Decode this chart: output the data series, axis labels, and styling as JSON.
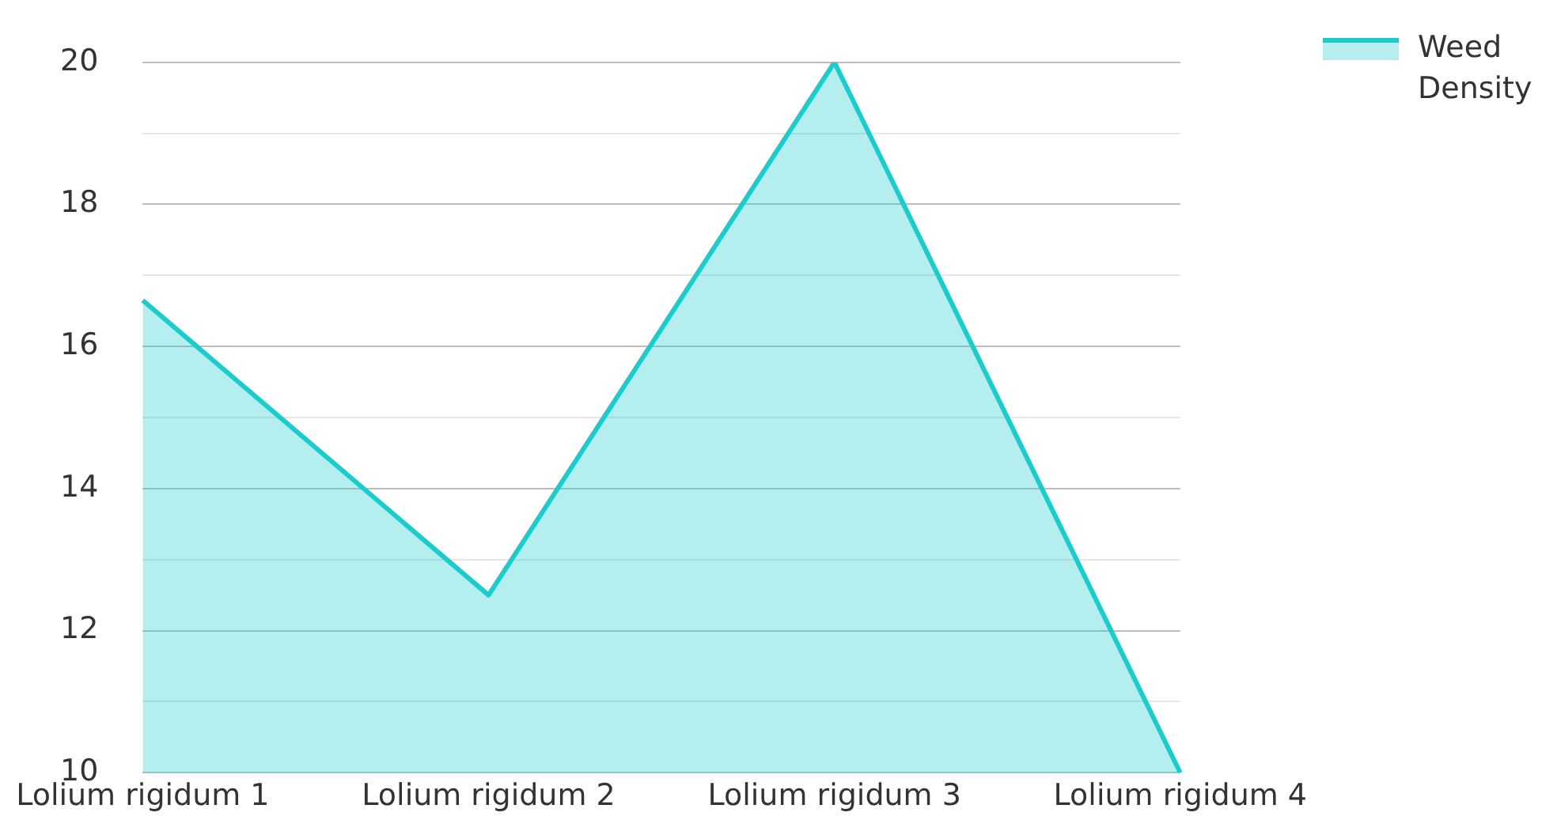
{
  "chart_data": {
    "type": "area",
    "categories": [
      "Lolium rigidum 1",
      "Lolium rigidum 2",
      "Lolium rigidum 3",
      "Lolium rigidum 4"
    ],
    "series": [
      {
        "name": "Weed Density",
        "color": "#1ccccc",
        "values": [
          16.65,
          12.5,
          20,
          10
        ]
      }
    ],
    "ylim": [
      10,
      20
    ],
    "yticks": [
      10,
      {
        "value": 11,
        "label": null
      },
      12,
      {
        "value": 13,
        "label": null
      },
      14,
      {
        "value": 15,
        "label": null
      },
      16,
      {
        "value": 17,
        "label": null
      },
      18,
      {
        "value": 19,
        "label": null
      },
      20
    ],
    "grid": "y",
    "legend": "top right",
    "marker": "none"
  }
}
